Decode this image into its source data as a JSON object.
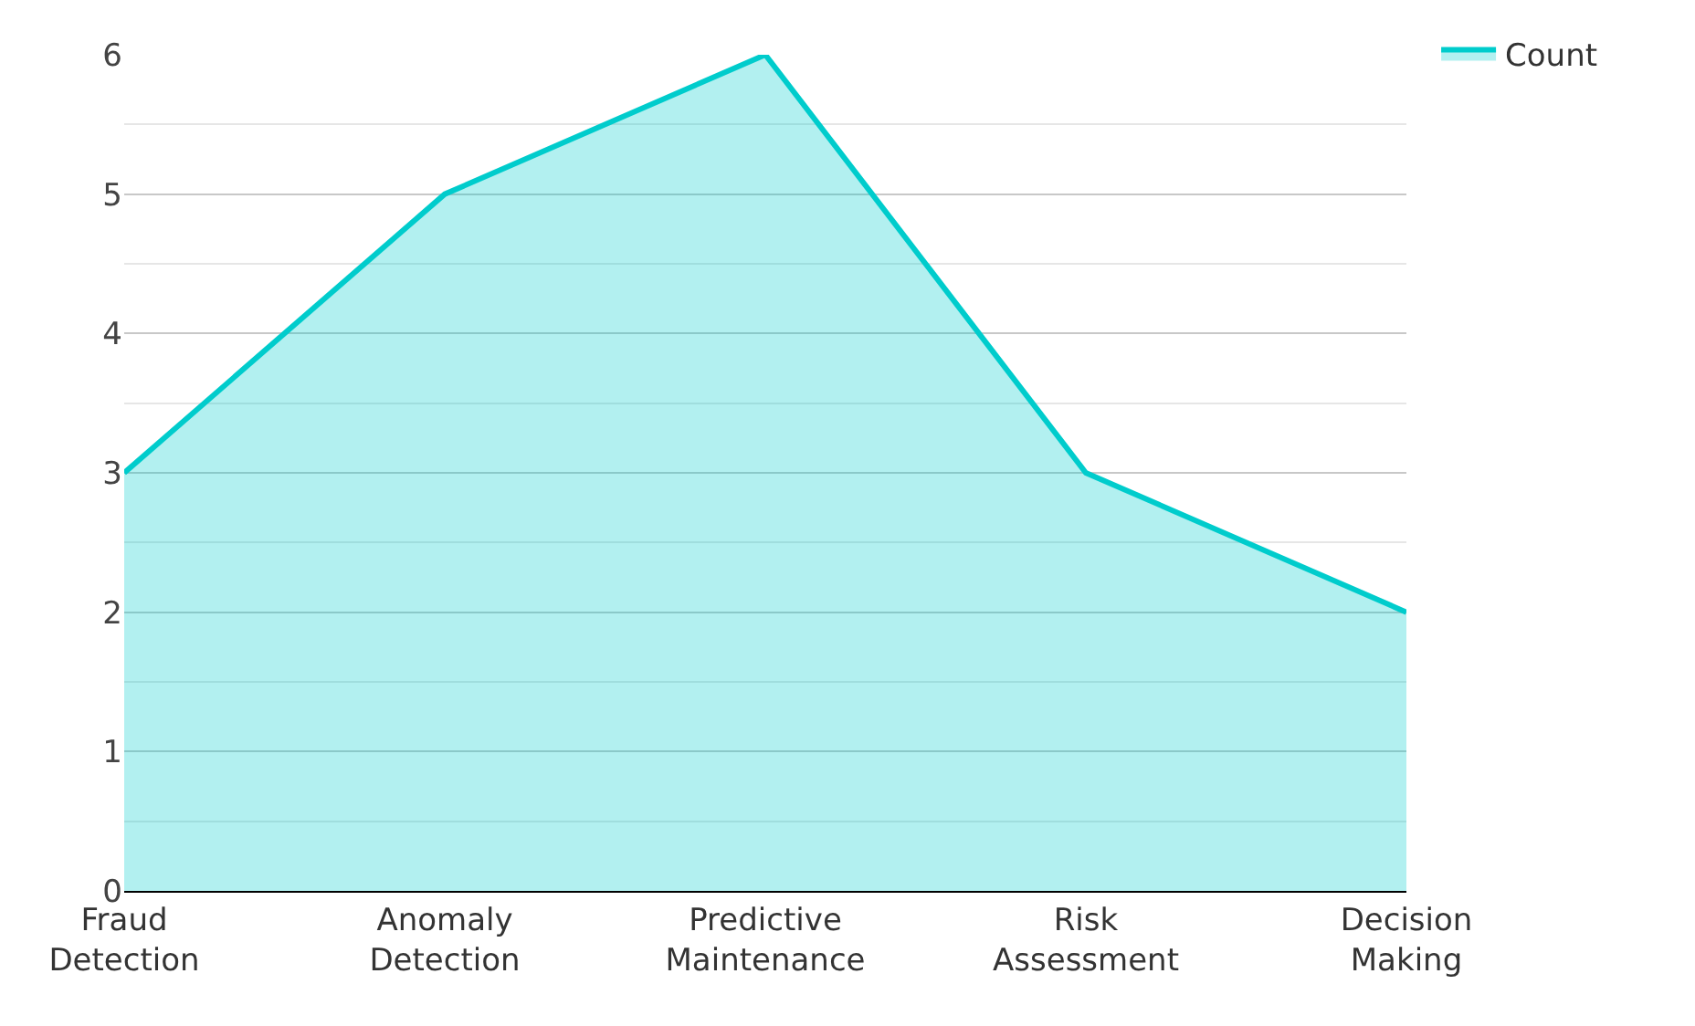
{
  "chart_data": {
    "type": "area",
    "categories": [
      "Fraud Detection",
      "Anomaly Detection",
      "Predictive Maintenance",
      "Risk Assessment",
      "Decision Making"
    ],
    "series": [
      {
        "name": "Count",
        "color": "#00cccc",
        "values": [
          3,
          5,
          6,
          3,
          2
        ]
      }
    ],
    "ylim": [
      0,
      6
    ],
    "yticks": [
      0,
      1,
      2,
      3,
      4,
      5,
      6
    ],
    "grid": "y",
    "legend": "top right",
    "marker": "none",
    "line_style": "solid"
  }
}
